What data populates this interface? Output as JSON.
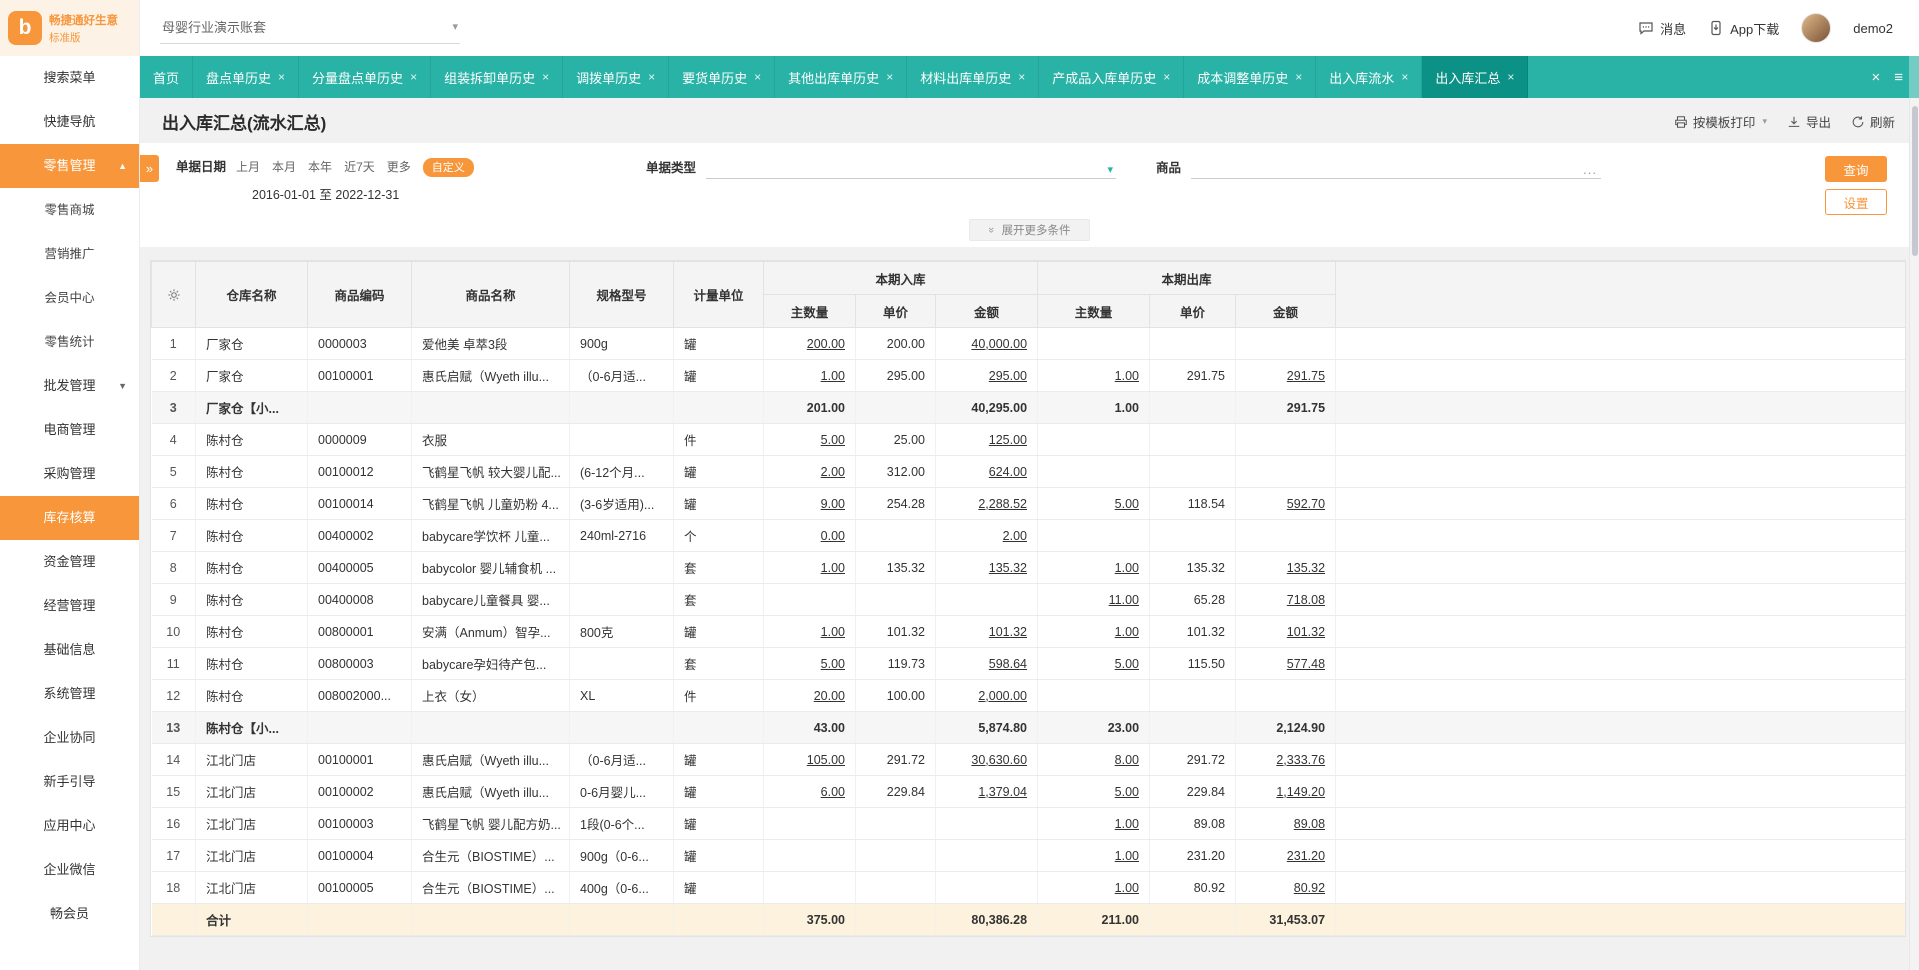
{
  "colors": {
    "teal": "#29b3a6",
    "teal_dark": "#0c9186",
    "orange": "#f7963b",
    "total_row_bg": "#fcf2dd"
  },
  "brand": {
    "name": "畅捷通好生意",
    "edition": "标准版"
  },
  "topbar": {
    "account": "母婴行业演示账套",
    "messages": "消息",
    "app_download": "App下载",
    "username": "demo2"
  },
  "sidebar": {
    "items": [
      {
        "id": "search-menu",
        "label": "搜索菜单"
      },
      {
        "id": "quick-nav",
        "label": "快捷导航"
      },
      {
        "id": "retail-management",
        "label": "零售管理",
        "variant": "module-active",
        "arrow": "up"
      },
      {
        "id": "retail-mall",
        "label": "零售商城",
        "variant": "sub"
      },
      {
        "id": "marketing-promotion",
        "label": "营销推广",
        "variant": "sub"
      },
      {
        "id": "member-center",
        "label": "会员中心",
        "variant": "sub"
      },
      {
        "id": "retail-statistics",
        "label": "零售统计",
        "variant": "sub"
      },
      {
        "id": "wholesale-management",
        "label": "批发管理",
        "arrow": "down"
      },
      {
        "id": "ecommerce-management",
        "label": "电商管理"
      },
      {
        "id": "purchase-management",
        "label": "采购管理"
      },
      {
        "id": "inventory-accounting",
        "label": "库存核算",
        "variant": "module-active"
      },
      {
        "id": "funds-management",
        "label": "资金管理"
      },
      {
        "id": "operation-management",
        "label": "经营管理"
      },
      {
        "id": "basic-info",
        "label": "基础信息"
      },
      {
        "id": "system-management",
        "label": "系统管理"
      },
      {
        "id": "enterprise-collaboration",
        "label": "企业协同"
      },
      {
        "id": "beginner-guide",
        "label": "新手引导"
      },
      {
        "id": "app-center",
        "label": "应用中心"
      },
      {
        "id": "enterprise-wechat",
        "label": "企业微信"
      },
      {
        "id": "chang-member",
        "label": "畅会员"
      }
    ]
  },
  "tabbar": {
    "tabs": [
      {
        "label": "首页",
        "closable": false,
        "active": false
      },
      {
        "label": "盘点单历史",
        "closable": true,
        "active": false
      },
      {
        "label": "分量盘点单历史",
        "closable": true,
        "active": false
      },
      {
        "label": "组装拆卸单历史",
        "closable": true,
        "active": false
      },
      {
        "label": "调拨单历史",
        "closable": true,
        "active": false
      },
      {
        "label": "要货单历史",
        "closable": true,
        "active": false
      },
      {
        "label": "其他出库单历史",
        "closable": true,
        "active": false
      },
      {
        "label": "材料出库单历史",
        "closable": true,
        "active": false
      },
      {
        "label": "产成品入库单历史",
        "closable": true,
        "active": false
      },
      {
        "label": "成本调整单历史",
        "closable": true,
        "active": false
      },
      {
        "label": "出入库流水",
        "closable": true,
        "active": false
      },
      {
        "label": "出入库汇总",
        "closable": true,
        "active": true
      }
    ]
  },
  "page": {
    "title": "出入库汇总(流水汇总)",
    "actions": {
      "print": "按模板打印",
      "export": "导出",
      "refresh": "刷新"
    }
  },
  "filters": {
    "date_label": "单据日期",
    "date_presets": [
      "上月",
      "本月",
      "本年",
      "近7天",
      "更多"
    ],
    "custom_badge": "自定义",
    "date_range": "2016-01-01 至 2022-12-31",
    "doc_type_label": "单据类型",
    "product_label": "商品",
    "search_button": "查询",
    "settings_button": "设置",
    "expand_more": "展开更多条件"
  },
  "table": {
    "columns": [
      "仓库名称",
      "商品编码",
      "商品名称",
      "规格型号",
      "计量单位"
    ],
    "group_headers": {
      "inbound": "本期入库",
      "outbound": "本期出库"
    },
    "sub_columns": [
      "主数量",
      "单价",
      "金额"
    ],
    "rows": [
      {
        "num": "1",
        "warehouse": "厂家仓",
        "code": "0000003",
        "name": "爱他美 卓萃3段",
        "spec": "900g",
        "unit": "罐",
        "in_qty": "200.00",
        "in_price": "200.00",
        "in_amt": "40,000.00",
        "out_qty": "",
        "out_price": "",
        "out_amt": ""
      },
      {
        "num": "2",
        "warehouse": "厂家仓",
        "code": "00100001",
        "name": "惠氏启赋（Wyeth illu...",
        "spec": "（0-6月适...",
        "unit": "罐",
        "in_qty": "1.00",
        "in_price": "295.00",
        "in_amt": "295.00",
        "out_qty": "1.00",
        "out_price": "291.75",
        "out_amt": "291.75"
      },
      {
        "num": "3",
        "subtotal": true,
        "warehouse": "厂家仓【小...",
        "code": "",
        "name": "",
        "spec": "",
        "unit": "",
        "in_qty": "201.00",
        "in_price": "",
        "in_amt": "40,295.00",
        "out_qty": "1.00",
        "out_price": "",
        "out_amt": "291.75"
      },
      {
        "num": "4",
        "warehouse": "陈村仓",
        "code": "0000009",
        "name": "衣服",
        "spec": "",
        "unit": "件",
        "in_qty": "5.00",
        "in_price": "25.00",
        "in_amt": "125.00",
        "out_qty": "",
        "out_price": "",
        "out_amt": ""
      },
      {
        "num": "5",
        "warehouse": "陈村仓",
        "code": "00100012",
        "name": "飞鹤星飞帆 较大婴儿配...",
        "spec": "(6-12个月...",
        "unit": "罐",
        "in_qty": "2.00",
        "in_price": "312.00",
        "in_amt": "624.00",
        "out_qty": "",
        "out_price": "",
        "out_amt": ""
      },
      {
        "num": "6",
        "warehouse": "陈村仓",
        "code": "00100014",
        "name": "飞鹤星飞帆 儿童奶粉 4...",
        "spec": "(3-6岁适用)...",
        "unit": "罐",
        "in_qty": "9.00",
        "in_price": "254.28",
        "in_amt": "2,288.52",
        "out_qty": "5.00",
        "out_price": "118.54",
        "out_amt": "592.70"
      },
      {
        "num": "7",
        "warehouse": "陈村仓",
        "code": "00400002",
        "name": "babycare学饮杯 儿童...",
        "spec": "240ml-2716",
        "unit": "个",
        "in_qty": "0.00",
        "in_price": "",
        "in_amt": "2.00",
        "out_qty": "",
        "out_price": "",
        "out_amt": ""
      },
      {
        "num": "8",
        "warehouse": "陈村仓",
        "code": "00400005",
        "name": "babycolor 婴儿辅食机 ...",
        "spec": "",
        "unit": "套",
        "in_qty": "1.00",
        "in_price": "135.32",
        "in_amt": "135.32",
        "out_qty": "1.00",
        "out_price": "135.32",
        "out_amt": "135.32"
      },
      {
        "num": "9",
        "warehouse": "陈村仓",
        "code": "00400008",
        "name": "babycare儿童餐具 婴...",
        "spec": "",
        "unit": "套",
        "in_qty": "",
        "in_price": "",
        "in_amt": "",
        "out_qty": "11.00",
        "out_price": "65.28",
        "out_amt": "718.08"
      },
      {
        "num": "10",
        "warehouse": "陈村仓",
        "code": "00800001",
        "name": "安满（Anmum）智孕...",
        "spec": "800克",
        "unit": "罐",
        "in_qty": "1.00",
        "in_price": "101.32",
        "in_amt": "101.32",
        "out_qty": "1.00",
        "out_price": "101.32",
        "out_amt": "101.32"
      },
      {
        "num": "11",
        "warehouse": "陈村仓",
        "code": "00800003",
        "name": "babycare孕妇待产包...",
        "spec": "",
        "unit": "套",
        "in_qty": "5.00",
        "in_price": "119.73",
        "in_amt": "598.64",
        "out_qty": "5.00",
        "out_price": "115.50",
        "out_amt": "577.48"
      },
      {
        "num": "12",
        "warehouse": "陈村仓",
        "code": "008002000...",
        "name": "上衣（女）",
        "spec": "XL",
        "unit": "件",
        "in_qty": "20.00",
        "in_price": "100.00",
        "in_amt": "2,000.00",
        "out_qty": "",
        "out_price": "",
        "out_amt": ""
      },
      {
        "num": "13",
        "subtotal": true,
        "warehouse": "陈村仓【小...",
        "code": "",
        "name": "",
        "spec": "",
        "unit": "",
        "in_qty": "43.00",
        "in_price": "",
        "in_amt": "5,874.80",
        "out_qty": "23.00",
        "out_price": "",
        "out_amt": "2,124.90"
      },
      {
        "num": "14",
        "warehouse": "江北门店",
        "code": "00100001",
        "name": "惠氏启赋（Wyeth illu...",
        "spec": "（0-6月适...",
        "unit": "罐",
        "in_qty": "105.00",
        "in_price": "291.72",
        "in_amt": "30,630.60",
        "out_qty": "8.00",
        "out_price": "291.72",
        "out_amt": "2,333.76"
      },
      {
        "num": "15",
        "warehouse": "江北门店",
        "code": "00100002",
        "name": "惠氏启赋（Wyeth illu...",
        "spec": "0-6月婴儿...",
        "unit": "罐",
        "in_qty": "6.00",
        "in_price": "229.84",
        "in_amt": "1,379.04",
        "out_qty": "5.00",
        "out_price": "229.84",
        "out_amt": "1,149.20"
      },
      {
        "num": "16",
        "warehouse": "江北门店",
        "code": "00100003",
        "name": "飞鹤星飞帆 婴儿配方奶...",
        "spec": "1段(0-6个...",
        "unit": "罐",
        "in_qty": "",
        "in_price": "",
        "in_amt": "",
        "out_qty": "1.00",
        "out_price": "89.08",
        "out_amt": "89.08"
      },
      {
        "num": "17",
        "warehouse": "江北门店",
        "code": "00100004",
        "name": "合生元（BIOSTIME）...",
        "spec": "900g（0-6...",
        "unit": "罐",
        "in_qty": "",
        "in_price": "",
        "in_amt": "",
        "out_qty": "1.00",
        "out_price": "231.20",
        "out_amt": "231.20"
      },
      {
        "num": "18",
        "warehouse": "江北门店",
        "code": "00100005",
        "name": "合生元（BIOSTIME）...",
        "spec": "400g（0-6...",
        "unit": "罐",
        "in_qty": "",
        "in_price": "",
        "in_amt": "",
        "out_qty": "1.00",
        "out_price": "80.92",
        "out_amt": "80.92"
      }
    ],
    "total": {
      "label": "合计",
      "in_qty": "375.00",
      "in_amt": "80,386.28",
      "out_qty": "211.00",
      "out_amt": "31,453.07"
    }
  }
}
